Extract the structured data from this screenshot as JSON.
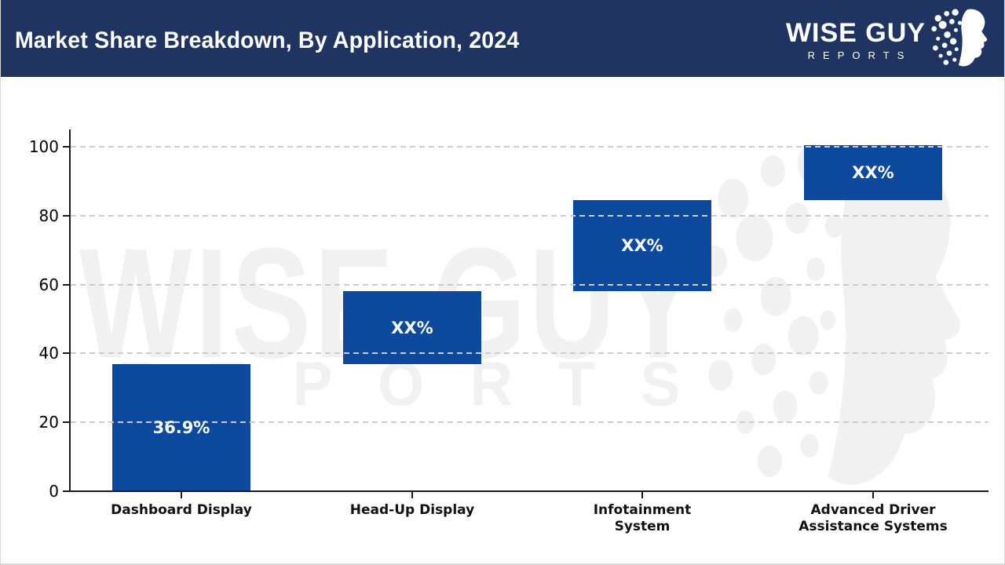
{
  "header": {
    "title": "Market Share Breakdown, By Application, 2024",
    "logo_line1": "WISE GUY",
    "logo_line2": "REPORTS",
    "bg_color": "#1f3461"
  },
  "watermark": {
    "line1": "WISE GUY",
    "line2": "REPORTS",
    "face_icon": "dotted-head-profile"
  },
  "chart_data": {
    "type": "bar",
    "subtype": "waterfall-floating-segments",
    "title": "Market Share Breakdown, By Application, 2024",
    "categories": [
      "Dashboard Display",
      "Head-Up Display",
      "Infotainment System",
      "Advanced Driver Assistance Systems"
    ],
    "category_label_lines": [
      [
        "Dashboard Display"
      ],
      [
        "Head-Up Display"
      ],
      [
        "Infotainment",
        "System"
      ],
      [
        "Advanced Driver",
        "Assistance Systems"
      ]
    ],
    "series": [
      {
        "name": "Market Share (%)",
        "segments": [
          {
            "category": "Dashboard Display",
            "start": 0,
            "end": 36.9,
            "label": "36.9%"
          },
          {
            "category": "Head-Up Display",
            "start": 36.9,
            "end": 58,
            "label": "XX%"
          },
          {
            "category": "Infotainment System",
            "start": 58,
            "end": 84.5,
            "label": "XX%"
          },
          {
            "category": "Advanced Driver Assistance Systems",
            "start": 84.5,
            "end": 100.5,
            "label": "XX%"
          }
        ]
      }
    ],
    "xlabel": "",
    "ylabel": "",
    "ylim": [
      0,
      100
    ],
    "yticks": [
      0,
      20,
      40,
      60,
      80,
      100
    ],
    "grid": "horizontal-dashed",
    "legend": "none",
    "bar_color": "#0d4a9e",
    "bar_label_color": "#ffffff",
    "axis_color": "#1a1a1a",
    "gridline_color": "#cccccc"
  }
}
